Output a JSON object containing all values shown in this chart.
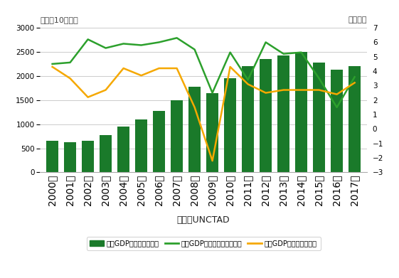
{
  "years": [
    2000,
    2001,
    2002,
    2003,
    2004,
    2005,
    2006,
    2007,
    2008,
    2009,
    2010,
    2011,
    2012,
    2013,
    2014,
    2015,
    2016,
    2017
  ],
  "nominal_gdp": [
    650,
    620,
    650,
    780,
    950,
    1100,
    1280,
    1500,
    1780,
    1650,
    1950,
    2200,
    2350,
    2420,
    2500,
    2280,
    2130,
    2200
  ],
  "real_gdp_africa": [
    4.5,
    4.6,
    6.2,
    5.6,
    5.9,
    5.8,
    6.0,
    6.3,
    5.5,
    2.5,
    5.3,
    3.4,
    6.0,
    5.2,
    5.3,
    3.5,
    1.5,
    3.6
  ],
  "real_gdp_world": [
    4.3,
    3.5,
    2.2,
    2.7,
    4.2,
    3.7,
    4.2,
    4.2,
    1.5,
    -2.2,
    4.3,
    3.1,
    2.5,
    2.7,
    2.7,
    2.7,
    2.4,
    3.2
  ],
  "bar_color": "#1a7a2a",
  "line_africa_color": "#2ca02c",
  "line_world_color": "#f5a800",
  "left_ylabel": "単位：10億ドル",
  "right_ylabel": "単位：％",
  "source_label": "出所：UNCTAD",
  "legend_bar": "名目GDP値（アフリカ）",
  "legend_africa": "実質GDP成長率（アフリカ）",
  "legend_world": "実質GDP成長率（世界）",
  "left_ylim": [
    0,
    3000
  ],
  "right_ylim": [
    -3,
    7
  ],
  "left_yticks": [
    0,
    500,
    1000,
    1500,
    2000,
    2500,
    3000
  ],
  "right_yticks": [
    -3,
    -2,
    -1,
    0,
    1,
    2,
    3,
    4,
    5,
    6,
    7
  ],
  "bg_color": "#ffffff",
  "grid_color": "#cccccc"
}
